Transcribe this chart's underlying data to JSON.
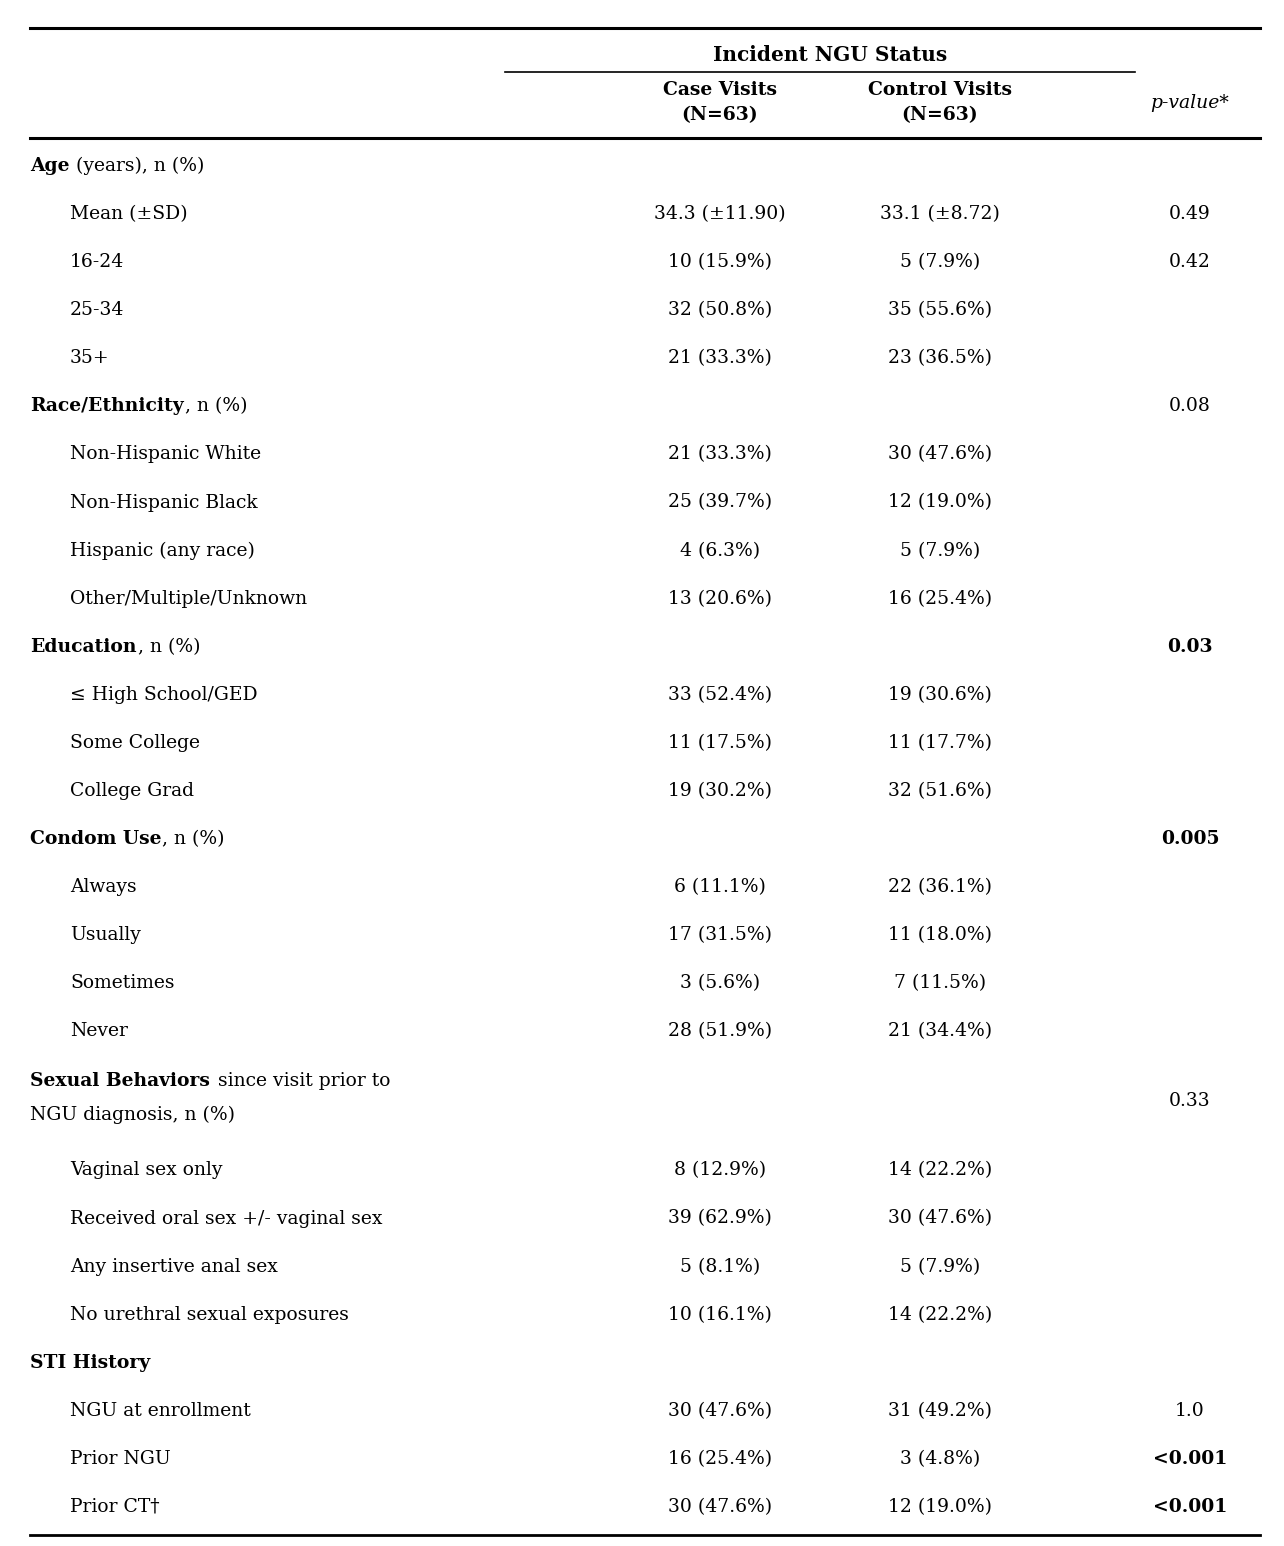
{
  "title": "Incident NGU Status",
  "rows": [
    {
      "label": "Age (years), n (%)",
      "bold_part": "Age",
      "normal_part": " (years), n (%)",
      "col1": "",
      "col2": "",
      "col3": "",
      "indent": 0,
      "col3_bold": false
    },
    {
      "label": "Mean (±SD)",
      "bold_part": "",
      "normal_part": "Mean (±SD)",
      "col1": "34.3 (±11.90)",
      "col2": "33.1 (±8.72)",
      "col3": "0.49",
      "indent": 1,
      "col3_bold": false
    },
    {
      "label": "16-24",
      "bold_part": "",
      "normal_part": "16-24",
      "col1": "10 (15.9%)",
      "col2": "5 (7.9%)",
      "col3": "0.42",
      "indent": 1,
      "col3_bold": false
    },
    {
      "label": "25-34",
      "bold_part": "",
      "normal_part": "25-34",
      "col1": "32 (50.8%)",
      "col2": "35 (55.6%)",
      "col3": "",
      "indent": 1,
      "col3_bold": false
    },
    {
      "label": "35+",
      "bold_part": "",
      "normal_part": "35+",
      "col1": "21 (33.3%)",
      "col2": "23 (36.5%)",
      "col3": "",
      "indent": 1,
      "col3_bold": false
    },
    {
      "label": "Race/Ethnicity, n (%)",
      "bold_part": "Race/Ethnicity",
      "normal_part": ", n (%)",
      "col1": "",
      "col2": "",
      "col3": "0.08",
      "indent": 0,
      "col3_bold": false
    },
    {
      "label": "Non-Hispanic White",
      "bold_part": "",
      "normal_part": "Non-Hispanic White",
      "col1": "21 (33.3%)",
      "col2": "30 (47.6%)",
      "col3": "",
      "indent": 1,
      "col3_bold": false
    },
    {
      "label": "Non-Hispanic Black",
      "bold_part": "",
      "normal_part": "Non-Hispanic Black",
      "col1": "25 (39.7%)",
      "col2": "12 (19.0%)",
      "col3": "",
      "indent": 1,
      "col3_bold": false
    },
    {
      "label": "Hispanic (any race)",
      "bold_part": "",
      "normal_part": "Hispanic (any race)",
      "col1": "4 (6.3%)",
      "col2": "5 (7.9%)",
      "col3": "",
      "indent": 1,
      "col3_bold": false
    },
    {
      "label": "Other/Multiple/Unknown",
      "bold_part": "",
      "normal_part": "Other/Multiple/Unknown",
      "col1": "13 (20.6%)",
      "col2": "16 (25.4%)",
      "col3": "",
      "indent": 1,
      "col3_bold": false
    },
    {
      "label": "Education, n (%)",
      "bold_part": "Education",
      "normal_part": ", n (%)",
      "col1": "",
      "col2": "",
      "col3": "0.03",
      "indent": 0,
      "col3_bold": true
    },
    {
      "label": "≤ High School/GED",
      "bold_part": "",
      "normal_part": "≤ High School/GED",
      "col1": "33 (52.4%)",
      "col2": "19 (30.6%)",
      "col3": "",
      "indent": 1,
      "col3_bold": false
    },
    {
      "label": "Some College",
      "bold_part": "",
      "normal_part": "Some College",
      "col1": "11 (17.5%)",
      "col2": "11 (17.7%)",
      "col3": "",
      "indent": 1,
      "col3_bold": false
    },
    {
      "label": "College Grad",
      "bold_part": "",
      "normal_part": "College Grad",
      "col1": "19 (30.2%)",
      "col2": "32 (51.6%)",
      "col3": "",
      "indent": 1,
      "col3_bold": false
    },
    {
      "label": "Condom Use, n (%)",
      "bold_part": "Condom Use",
      "normal_part": ", n (%)",
      "col1": "",
      "col2": "",
      "col3": "0.005",
      "indent": 0,
      "col3_bold": true
    },
    {
      "label": "Always",
      "bold_part": "",
      "normal_part": "Always",
      "col1": "6 (11.1%)",
      "col2": "22 (36.1%)",
      "col3": "",
      "indent": 1,
      "col3_bold": false
    },
    {
      "label": "Usually",
      "bold_part": "",
      "normal_part": "Usually",
      "col1": "17 (31.5%)",
      "col2": "11 (18.0%)",
      "col3": "",
      "indent": 1,
      "col3_bold": false
    },
    {
      "label": "Sometimes",
      "bold_part": "",
      "normal_part": "Sometimes",
      "col1": "3 (5.6%)",
      "col2": "7 (11.5%)",
      "col3": "",
      "indent": 1,
      "col3_bold": false
    },
    {
      "label": "Never",
      "bold_part": "",
      "normal_part": "Never",
      "col1": "28 (51.9%)",
      "col2": "21 (34.4%)",
      "col3": "",
      "indent": 1,
      "col3_bold": false
    },
    {
      "label": "Sexual Behaviors since visit prior to NGU diagnosis, n (%)",
      "bold_part": "Sexual Behaviors",
      "normal_part": " since visit prior to\nNGU diagnosis, n (%)",
      "col1": "",
      "col2": "",
      "col3": "0.33",
      "indent": 0,
      "col3_bold": false,
      "multiline": true
    },
    {
      "label": "Vaginal sex only",
      "bold_part": "",
      "normal_part": "Vaginal sex only",
      "col1": "8 (12.9%)",
      "col2": "14 (22.2%)",
      "col3": "",
      "indent": 1,
      "col3_bold": false
    },
    {
      "label": "Received oral sex +/- vaginal sex",
      "bold_part": "",
      "normal_part": "Received oral sex +/- vaginal sex",
      "col1": "39 (62.9%)",
      "col2": "30 (47.6%)",
      "col3": "",
      "indent": 1,
      "col3_bold": false
    },
    {
      "label": "Any insertive anal sex",
      "bold_part": "",
      "normal_part": "Any insertive anal sex",
      "col1": "5 (8.1%)",
      "col2": "5 (7.9%)",
      "col3": "",
      "indent": 1,
      "col3_bold": false
    },
    {
      "label": "No urethral sexual exposures",
      "bold_part": "",
      "normal_part": "No urethral sexual exposures",
      "col1": "10 (16.1%)",
      "col2": "14 (22.2%)",
      "col3": "",
      "indent": 1,
      "col3_bold": false
    },
    {
      "label": "STI History",
      "bold_part": "STI History",
      "normal_part": "",
      "col1": "",
      "col2": "",
      "col3": "",
      "indent": 0,
      "col3_bold": false
    },
    {
      "label": "NGU at enrollment",
      "bold_part": "",
      "normal_part": "NGU at enrollment",
      "col1": "30 (47.6%)",
      "col2": "31 (49.2%)",
      "col3": "1.0",
      "indent": 1,
      "col3_bold": false
    },
    {
      "label": "Prior NGU",
      "bold_part": "",
      "normal_part": "Prior NGU",
      "col1": "16 (25.4%)",
      "col2": "3 (4.8%)",
      "col3": "<0.001",
      "indent": 1,
      "col3_bold": true
    },
    {
      "label": "Prior CT†",
      "bold_part": "",
      "normal_part": "Prior CT†",
      "col1": "30 (47.6%)",
      "col2": "12 (19.0%)",
      "col3": "<0.001",
      "indent": 1,
      "col3_bold": true
    }
  ],
  "font_family": "DejaVu Serif",
  "base_fontsize": 13.5
}
